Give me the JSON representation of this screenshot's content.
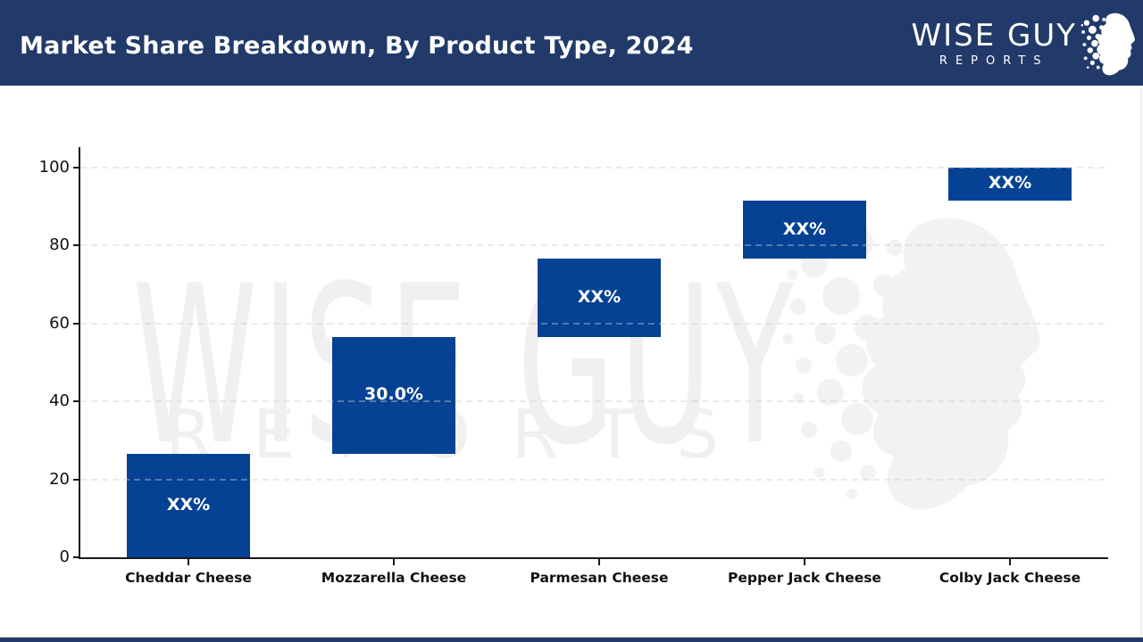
{
  "header": {
    "title": "Market Share Breakdown, By Product Type, 2024",
    "logo": {
      "line1": "WISE GUY",
      "line2": "REPORTS"
    }
  },
  "watermark": {
    "line1": "WISE GUY",
    "line2": "REPORTS"
  },
  "chart_data": {
    "type": "bar",
    "variant": "floating-segment-waterfall",
    "title": "Market Share Breakdown, By Product Type, 2024",
    "categories": [
      "Cheddar Cheese",
      "Mozzarella Cheese",
      "Parmesan Cheese",
      "Pepper Jack Cheese",
      "Colby Jack Cheese"
    ],
    "segments": [
      {
        "category": "Cheddar Cheese",
        "start": 0,
        "end": 26.5,
        "value": 26.5,
        "label": "XX%"
      },
      {
        "category": "Mozzarella Cheese",
        "start": 26.5,
        "end": 56.5,
        "value": 30.0,
        "label": "30.0%"
      },
      {
        "category": "Parmesan Cheese",
        "start": 56.5,
        "end": 76.5,
        "value": 20.0,
        "label": "XX%"
      },
      {
        "category": "Pepper Jack Cheese",
        "start": 76.5,
        "end": 91.5,
        "value": 15.0,
        "label": "XX%"
      },
      {
        "category": "Colby Jack Cheese",
        "start": 91.5,
        "end": 100,
        "value": 8.5,
        "label": "XX%"
      }
    ],
    "y_ticks": [
      0,
      20,
      40,
      60,
      80,
      100
    ],
    "ylim": [
      0,
      105
    ],
    "xlabel": "",
    "ylabel": "",
    "grid": true,
    "grid_style": "dashed",
    "legend": false,
    "bar_color": "#054294",
    "bar_label_color": "#ffffff",
    "axis_color": "#1a1a1a",
    "accent_navy": "#213a69"
  }
}
